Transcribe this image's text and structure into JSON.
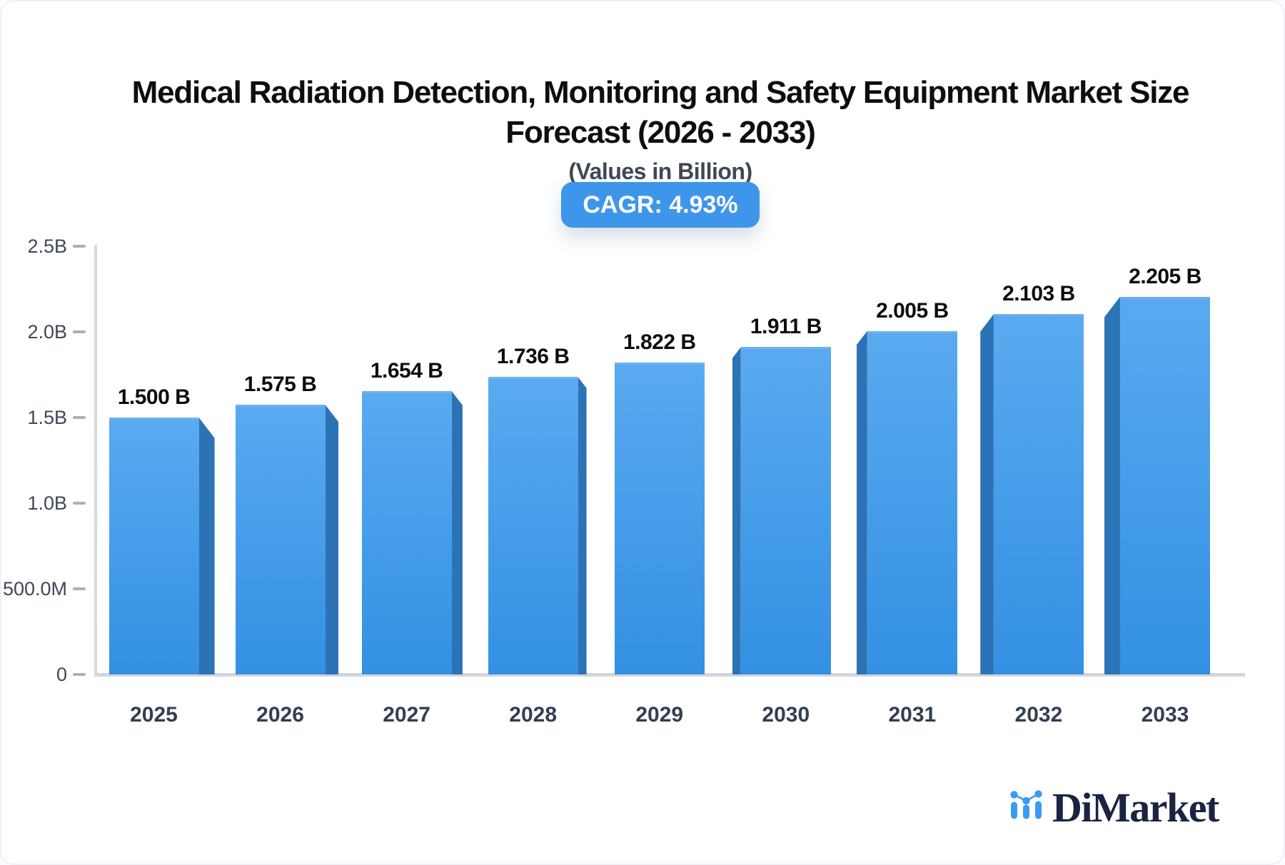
{
  "header": {
    "title_line1": "Medical Radiation Detection, Monitoring and Safety Equipment Market Size",
    "title_line2": "Forecast (2026 - 2033)",
    "subtitle": "(Values in Billion)",
    "cagr_label": "CAGR: 4.93%"
  },
  "chart_data": {
    "type": "bar",
    "title": "Medical Radiation Detection, Monitoring and Safety Equipment Market Size Forecast (2026 - 2033)",
    "subtitle": "(Values in Billion)",
    "cagr": "CAGR: 4.93%",
    "categories": [
      "2025",
      "2026",
      "2027",
      "2028",
      "2029",
      "2030",
      "2031",
      "2032",
      "2033"
    ],
    "values": [
      1.5,
      1.575,
      1.654,
      1.736,
      1.822,
      1.911,
      2.005,
      2.103,
      2.205
    ],
    "value_labels": [
      "1.500 B",
      "1.575 B",
      "1.654 B",
      "1.736 B",
      "1.822 B",
      "1.911 B",
      "2.005 B",
      "2.103 B",
      "2.205 B"
    ],
    "unit": "Billion",
    "xlabel": "",
    "ylabel": "",
    "ylim": [
      0,
      2.5
    ],
    "grid": false,
    "legend": "none",
    "y_ticks": [
      {
        "label": "2.5B",
        "value": 2.5
      },
      {
        "label": "2.0B",
        "value": 2.0
      },
      {
        "label": "1.5B",
        "value": 1.5
      },
      {
        "label": "1.0B",
        "value": 1.0
      },
      {
        "label": "500.0M",
        "value": 0.5
      },
      {
        "label": "0",
        "value": 0
      }
    ],
    "bar_color_top": "#59aaf0",
    "bar_color_bottom": "#3390e3",
    "bar_side_color": "#2c73b5",
    "perspective": "bars left of center beveled on right, bars right of center beveled on left, center bar flat"
  },
  "colors": {
    "badge_background": "#3e96ea",
    "badge_text": "#ffffff",
    "axis_line": "#d4d7dc",
    "tick_text": "#3f4856",
    "category_text": "#333e52",
    "value_label_text": "#0c0d10",
    "title_text": "#0d0e10",
    "brand_text": "#1a2440",
    "brand_icon_blue": "#3b9bf3"
  },
  "footer": {
    "brand": "DiMarket"
  }
}
